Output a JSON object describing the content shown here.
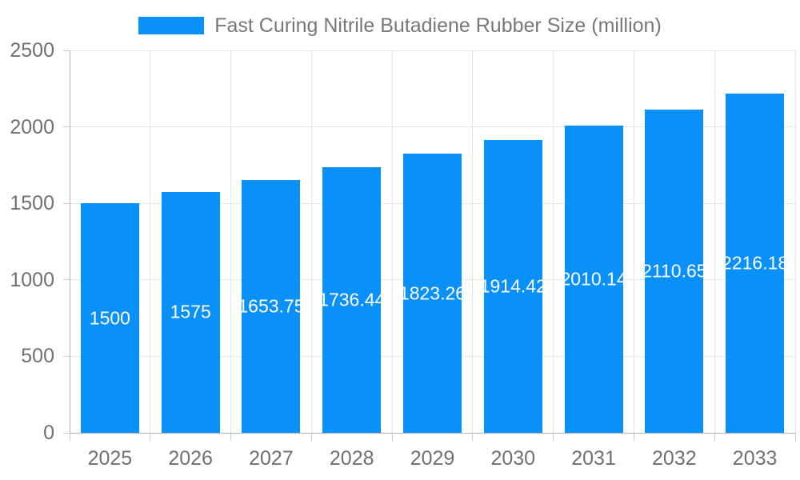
{
  "chart_data": {
    "type": "bar",
    "title": "Fast Curing Nitrile Butadiene Rubber Size (million)",
    "legend_position": "top",
    "categories": [
      "2025",
      "2026",
      "2027",
      "2028",
      "2029",
      "2030",
      "2031",
      "2032",
      "2033"
    ],
    "values": [
      1500,
      1575,
      1653.75,
      1736.44,
      1823.26,
      1914.42,
      2010.14,
      2110.65,
      2216.18
    ],
    "value_labels": [
      "1500",
      "1575",
      "1653.75",
      "1736.44",
      "1823.26",
      "1914.42",
      "2010.14",
      "2110.65",
      "2216.18"
    ],
    "xlabel": "",
    "ylabel": "",
    "ylim": [
      0,
      2500
    ],
    "yticks": [
      0,
      500,
      1000,
      1500,
      2000,
      2500
    ],
    "ytick_labels": [
      "0",
      "500",
      "1000",
      "1500",
      "2000",
      "2500"
    ],
    "grid": true,
    "colors": {
      "bar": "#0990F9",
      "grid": "#e6e6e6",
      "axis": "#b3b6b9",
      "tick": "#c9cccf",
      "axis_label": "#6e7174",
      "legend_label": "#75787b",
      "value_label": "#ffffff",
      "background": "#ffffff"
    }
  }
}
